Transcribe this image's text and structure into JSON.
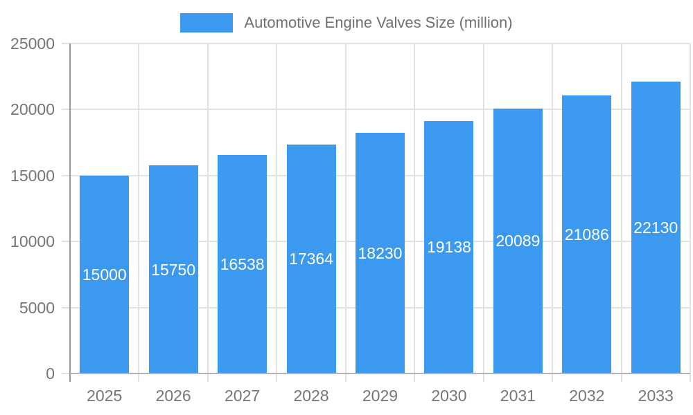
{
  "legend": {
    "label": "Automotive Engine Valves Size (million)"
  },
  "chart_data": {
    "type": "bar",
    "title": "Automotive Engine Valves Size (million)",
    "categories": [
      "2025",
      "2026",
      "2027",
      "2028",
      "2029",
      "2030",
      "2031",
      "2032",
      "2033"
    ],
    "series": [
      {
        "name": "Automotive Engine Valves Size (million)",
        "values": [
          15000,
          15750,
          16538,
          17364,
          18230,
          19138,
          20089,
          21086,
          22130
        ]
      }
    ],
    "xlabel": "",
    "ylabel": "",
    "ylim": [
      0,
      25000
    ],
    "yticks": [
      0,
      5000,
      10000,
      15000,
      20000,
      25000
    ],
    "grid": "both",
    "legend_position": "top",
    "bar_labels_inside": true,
    "colors": {
      "bar": "#3B99EF",
      "bar_label_text": "#FFFFFF",
      "axis_tick_text": "#757575",
      "legend_text": "#707070",
      "gridline": "#E2E2E2",
      "tick_mark": "#E0E0E0",
      "y_axis_line": "#999999",
      "x_axis_line": "#B3B3B3",
      "background": "#FFFFFF"
    }
  }
}
